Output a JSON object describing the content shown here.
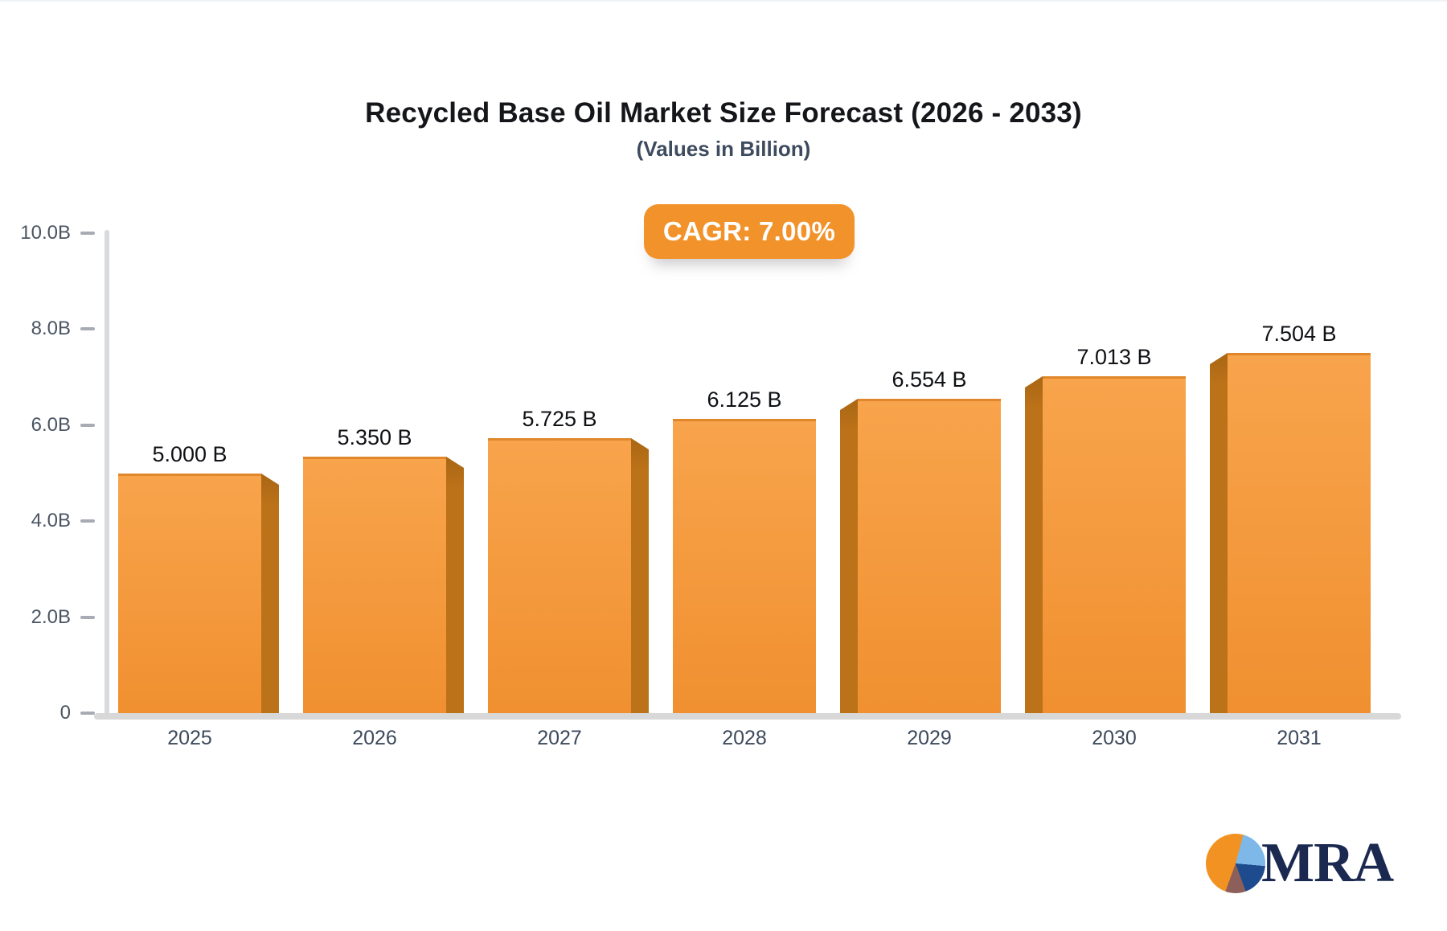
{
  "page": {
    "title": "Recycled Base Oil Market Size Forecast (2026 - 2033)",
    "subtitle": "(Values in Billion)",
    "cagr_badge": "CAGR: 7.00%"
  },
  "chart_data": {
    "type": "bar",
    "title": "Recycled Base Oil Market Size Forecast (2026 - 2033)",
    "subtitle": "(Values in Billion)",
    "annotation": "CAGR: 7.00%",
    "categories": [
      "2025",
      "2026",
      "2027",
      "2028",
      "2029",
      "2030",
      "2031"
    ],
    "values": [
      5.0,
      5.35,
      5.725,
      6.125,
      6.554,
      7.013,
      7.504
    ],
    "value_labels": [
      "5.000 B",
      "5.350 B",
      "5.725 B",
      "6.125 B",
      "6.554 B",
      "7.013 B",
      "7.504 B"
    ],
    "xlabel": "",
    "ylabel": "",
    "ylim": [
      0,
      10
    ],
    "ytick_values": [
      0,
      2,
      4,
      6,
      8,
      10
    ],
    "ytick_labels": [
      "0",
      "2.0B",
      "4.0B",
      "6.0B",
      "8.0B",
      "10.0B"
    ],
    "grid": false,
    "legend": null,
    "bar_style": "3d-center-perspective",
    "colors": {
      "bar_top": "#f8a44c",
      "bar_bottom": "#f09030",
      "bar_top_edge": "#e1872b",
      "bar_side": "#bc7219",
      "bar_side_shade": "#a96614",
      "axis": "#d9dadd",
      "baseline": "#d8d8d8",
      "tick": "#a6abb4",
      "ytick_text": "#4a5563",
      "xtick_text": "#3d4a5c",
      "value_text": "#0f1115"
    }
  },
  "badge": {
    "bg": "#f2922a",
    "text_color": "#ffffff"
  },
  "logo": {
    "text": "MRA",
    "text_color": "#1b2951",
    "pie": {
      "orange": "#f29222",
      "light_blue": "#7db8e8",
      "dark_blue": "#1e4a8e",
      "brown": "#8d5f5a"
    }
  }
}
